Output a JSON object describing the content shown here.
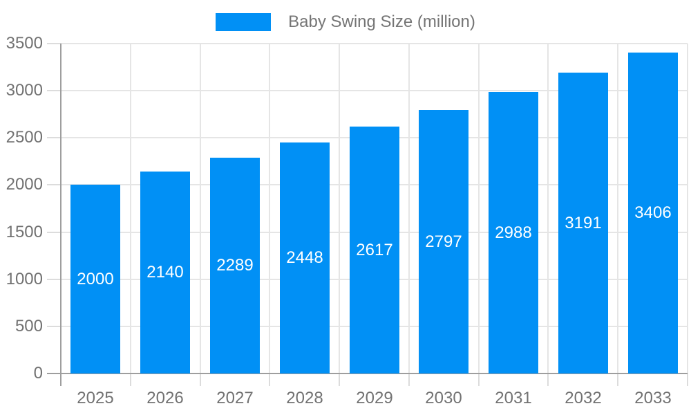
{
  "chart_data": {
    "type": "bar",
    "title": "",
    "legend": {
      "label": "Baby Swing Size (million)",
      "position": "top"
    },
    "categories": [
      "2025",
      "2026",
      "2027",
      "2028",
      "2029",
      "2030",
      "2031",
      "2032",
      "2033"
    ],
    "series": [
      {
        "name": "Baby Swing Size (million)",
        "values": [
          2000,
          2140,
          2289,
          2448,
          2617,
          2797,
          2988,
          3191,
          3406
        ]
      }
    ],
    "bar_labels": [
      "2000",
      "2140",
      "2289",
      "2448",
      "2617",
      "2797",
      "2988",
      "3191",
      "3406"
    ],
    "bar_label_position": "inside-center",
    "xlabel": "",
    "ylabel": "",
    "ylim": [
      0,
      3500
    ],
    "yticks": [
      0,
      500,
      1000,
      1500,
      2000,
      2500,
      3000,
      3500
    ],
    "grid": true,
    "colors": {
      "bar": "#0190f5",
      "grid_line": "#e5e5e5",
      "axis_line": "#9e9e9e",
      "tick_mark": "#dcdcdc",
      "tick_text": "#727272",
      "legend_text": "#757575",
      "bar_label_text": "#ffffff",
      "background": "#ffffff"
    }
  }
}
